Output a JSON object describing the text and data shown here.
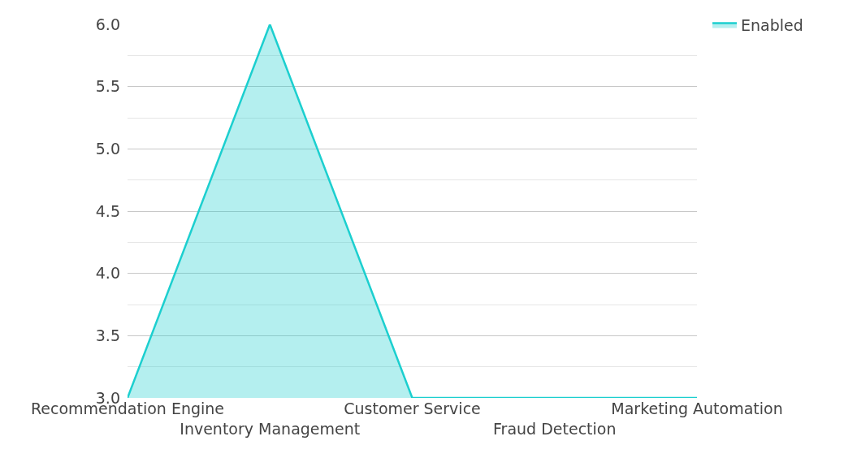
{
  "chart_data": {
    "type": "area",
    "categories": [
      "Recommendation Engine",
      "Inventory Management",
      "Customer Service",
      "Fraud Detection",
      "Marketing Automation"
    ],
    "series": [
      {
        "name": "Enabled",
        "color": "#1ccfcf",
        "values": [
          3,
          6,
          3,
          3,
          3
        ]
      }
    ],
    "ylim": [
      3,
      6
    ],
    "yticks": [
      {
        "value": 3,
        "label": "3.0"
      },
      {
        "value": 3.25,
        "label": null
      },
      {
        "value": 3.5,
        "label": "3.5"
      },
      {
        "value": 3.75,
        "label": null
      },
      {
        "value": 4,
        "label": "4.0"
      },
      {
        "value": 4.25,
        "label": null
      },
      {
        "value": 4.5,
        "label": "4.5"
      },
      {
        "value": 4.75,
        "label": null
      },
      {
        "value": 5,
        "label": "5.0"
      },
      {
        "value": 5.25,
        "label": null
      },
      {
        "value": 5.5,
        "label": "5.5"
      },
      {
        "value": 5.75,
        "label": null
      },
      {
        "value": 6,
        "label": "6.0"
      }
    ],
    "grid": "y",
    "legend": "top right"
  }
}
